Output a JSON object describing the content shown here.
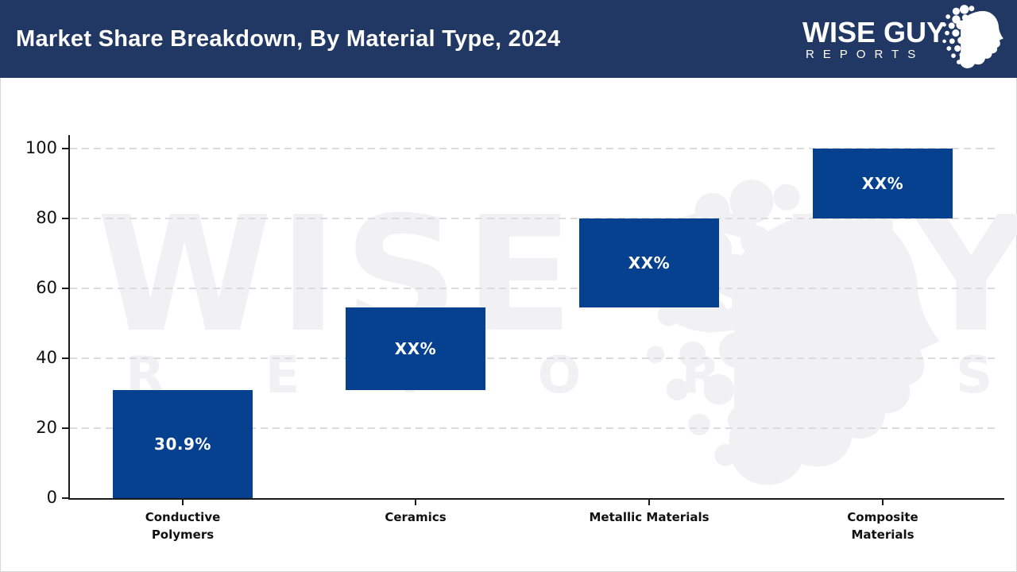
{
  "header": {
    "title": "Market Share Breakdown, By Material Type, 2024",
    "logo": {
      "line1": "WISE GUY",
      "line2": "REPORTS"
    }
  },
  "watermark": {
    "line1": "WISE GUY",
    "line2": "R E P O R T S"
  },
  "colors": {
    "header_bg": "#213764",
    "bar": "#05418f",
    "bar_label": "#ffffff",
    "watermark": "#f1f1f4",
    "grid": "#dcdcdc",
    "axis": "#1a1a1a"
  },
  "chart_data": {
    "type": "bar",
    "subtype": "waterfall",
    "title": "Market Share Breakdown, By Material Type, 2024",
    "xlabel": "",
    "ylabel": "",
    "ylim": [
      0,
      100
    ],
    "yticks": [
      0,
      20,
      40,
      60,
      80,
      100
    ],
    "grid": "horizontal-dashed",
    "legend": "none",
    "categories": [
      "Conductive Polymers",
      "Ceramics",
      "Metallic Materials",
      "Composite Materials"
    ],
    "category_display": [
      "Conductive\nPolymers",
      "Ceramics",
      "Metallic Materials",
      "Composite\nMaterials"
    ],
    "segments": [
      {
        "category": "Conductive Polymers",
        "start": 0,
        "end": 30.9,
        "label": "30.9%"
      },
      {
        "category": "Ceramics",
        "start": 30.9,
        "end": 54.5,
        "label": "XX%"
      },
      {
        "category": "Metallic Materials",
        "start": 54.5,
        "end": 80,
        "label": "XX%"
      },
      {
        "category": "Composite Materials",
        "start": 80,
        "end": 100,
        "label": "XX%"
      }
    ]
  }
}
